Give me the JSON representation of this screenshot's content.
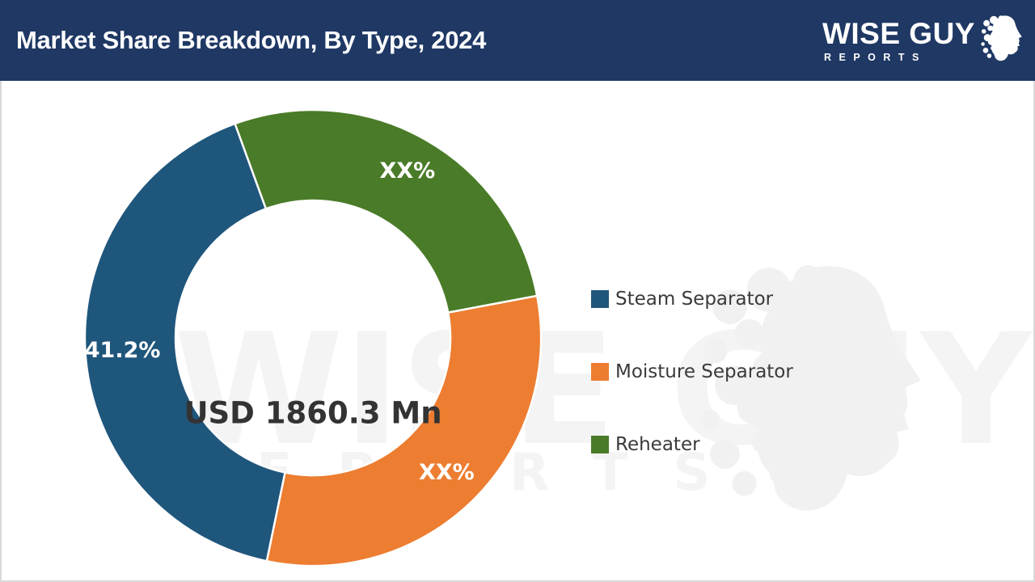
{
  "header": {
    "title": "Market Share Breakdown, By Type, 2024",
    "logo": {
      "line1": "WISE GUY",
      "line2": "REPORTS"
    }
  },
  "watermark": {
    "line1": "WISE GUY",
    "line2": "REPORTS"
  },
  "chart_data": {
    "type": "pie",
    "subtype": "donut",
    "title": "Market Share Breakdown, By Type, 2024",
    "center_label": "USD 1860.3 Mn",
    "start_angle_deg": 110,
    "direction": "counterclockwise",
    "legend_position": "right",
    "segments": [
      {
        "label": "Steam Separator",
        "display_pct": "41.2%",
        "value_pct": 41.2,
        "color": "#1f567c"
      },
      {
        "label": "Moisture Separator",
        "display_pct": "XX%",
        "value_pct": 31.2,
        "color": "#ed7d31"
      },
      {
        "label": "Reheater",
        "display_pct": "XX%",
        "value_pct": 27.6,
        "color": "#4a7b28"
      }
    ]
  },
  "colors": {
    "header_bg": "#1f3864",
    "frame_border": "#d9d9d9",
    "watermark": "#f4f4f4",
    "center_text": "#333333",
    "legend_text": "#3a3a3a",
    "separator": "#ffffff"
  }
}
